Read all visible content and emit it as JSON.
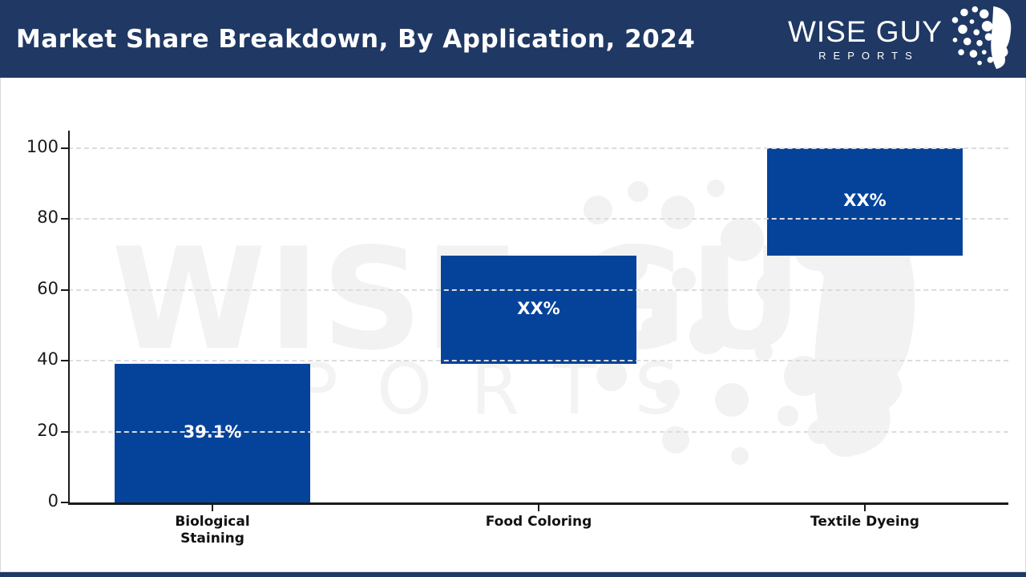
{
  "header": {
    "title": "Market Share Breakdown, By Application, 2024",
    "logo": {
      "line1": "WISE GUY",
      "line2": "REPORTS"
    }
  },
  "watermark": {
    "line1": "WISE GUY",
    "line2": "REPORTS"
  },
  "icons": {
    "logo_face": "dotted-face-profile-icon",
    "watermark_face": "dotted-face-profile-watermark"
  },
  "colors": {
    "header_navy": "#1f3864",
    "footer_navy": "#1f3864",
    "bar_blue": "#05439b",
    "gridline": "#dcdcdc",
    "axis": "#1a1a1a",
    "watermark_gray": "#f2f2f2"
  },
  "chart_data": {
    "type": "bar",
    "subtype": "waterfall",
    "title": "Market Share Breakdown, By Application, 2024",
    "categories": [
      "Biological Staining",
      "Food Coloring",
      "Textile Dyeing"
    ],
    "segments": [
      {
        "category": "Biological Staining",
        "start": 0,
        "end": 39.1,
        "label": "39.1%"
      },
      {
        "category": "Food Coloring",
        "start": 39.1,
        "end": 69.7,
        "label": "XX%"
      },
      {
        "category": "Textile Dyeing",
        "start": 69.7,
        "end": 100,
        "label": "XX%"
      }
    ],
    "ylim": [
      0,
      100
    ],
    "yticks": [
      0,
      20,
      40,
      60,
      80,
      100
    ],
    "grid": "horizontal dashed, drawn over bars",
    "legend": "none",
    "bar_color": "#05439b",
    "bar_label_color": "#ffffff"
  }
}
